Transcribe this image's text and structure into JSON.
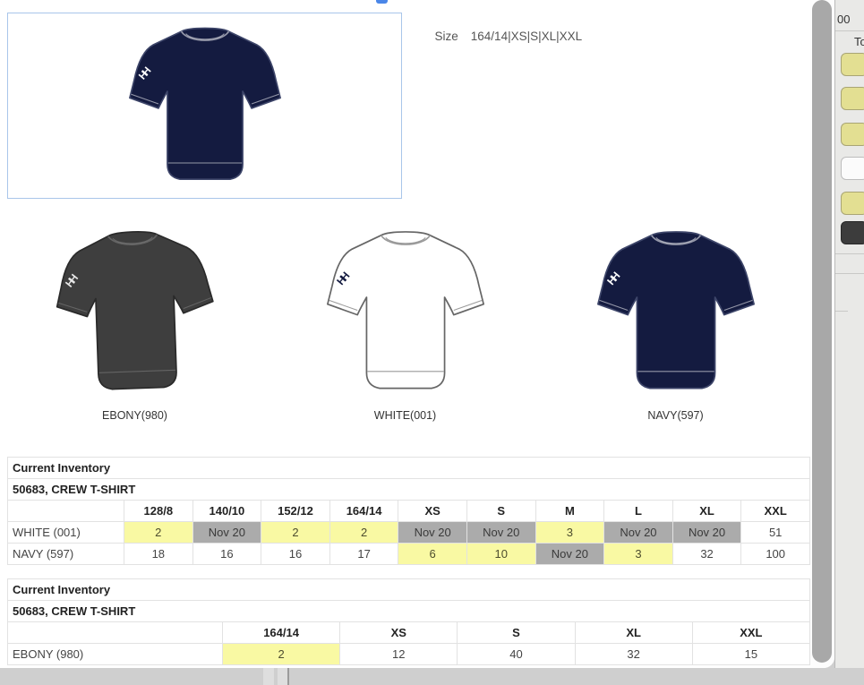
{
  "page": {
    "size_label": "Size",
    "size_value": "164/14|XS|S|XL|XXL"
  },
  "hero": {
    "variant": "navy",
    "color_hex": "#141b40"
  },
  "thumbnails": [
    {
      "label": "EBONY(980)",
      "variant": "ebony",
      "color_hex": "#3e3e3e"
    },
    {
      "label": "WHITE(001)",
      "variant": "white",
      "color_hex": "#ffffff"
    },
    {
      "label": "NAVY(597)",
      "variant": "navy",
      "color_hex": "#141b40"
    }
  ],
  "inventory_tables": [
    {
      "title": "Current Inventory",
      "subtitle": "50683, CREW T-SHIRT",
      "columns": [
        "128/8",
        "140/10",
        "152/12",
        "164/14",
        "XS",
        "S",
        "M",
        "L",
        "XL",
        "XXL"
      ],
      "rows": [
        {
          "label": "WHITE (001)",
          "cells": [
            {
              "value": "2",
              "state": "low"
            },
            {
              "value": "Nov 20",
              "state": "date"
            },
            {
              "value": "2",
              "state": "low"
            },
            {
              "value": "2",
              "state": "low"
            },
            {
              "value": "Nov 20",
              "state": "date"
            },
            {
              "value": "Nov 20",
              "state": "date"
            },
            {
              "value": "3",
              "state": "low"
            },
            {
              "value": "Nov 20",
              "state": "date"
            },
            {
              "value": "Nov 20",
              "state": "date"
            },
            {
              "value": "51",
              "state": "normal"
            }
          ]
        },
        {
          "label": "NAVY (597)",
          "cells": [
            {
              "value": "18",
              "state": "normal"
            },
            {
              "value": "16",
              "state": "normal"
            },
            {
              "value": "16",
              "state": "normal"
            },
            {
              "value": "17",
              "state": "normal"
            },
            {
              "value": "6",
              "state": "low"
            },
            {
              "value": "10",
              "state": "low"
            },
            {
              "value": "Nov 20",
              "state": "date"
            },
            {
              "value": "3",
              "state": "low"
            },
            {
              "value": "32",
              "state": "normal"
            },
            {
              "value": "100",
              "state": "normal"
            }
          ]
        }
      ]
    },
    {
      "title": "Current Inventory",
      "subtitle": "50683, CREW T-SHIRT",
      "columns": [
        "164/14",
        "XS",
        "S",
        "XL",
        "XXL"
      ],
      "rows": [
        {
          "label": "EBONY (980)",
          "cells": [
            {
              "value": "2",
              "state": "low"
            },
            {
              "value": "12",
              "state": "normal"
            },
            {
              "value": "40",
              "state": "normal"
            },
            {
              "value": "32",
              "state": "normal"
            },
            {
              "value": "15",
              "state": "normal"
            }
          ]
        }
      ]
    }
  ],
  "side_panel": {
    "top_value": "00",
    "column_header": "To",
    "boxes": [
      "yellow",
      "yellow",
      "yellow",
      "white",
      "yellow",
      "dark"
    ]
  },
  "status_colors": {
    "low_stock_bg": "#f9f9a3",
    "restock_date_bg": "#ababab"
  }
}
